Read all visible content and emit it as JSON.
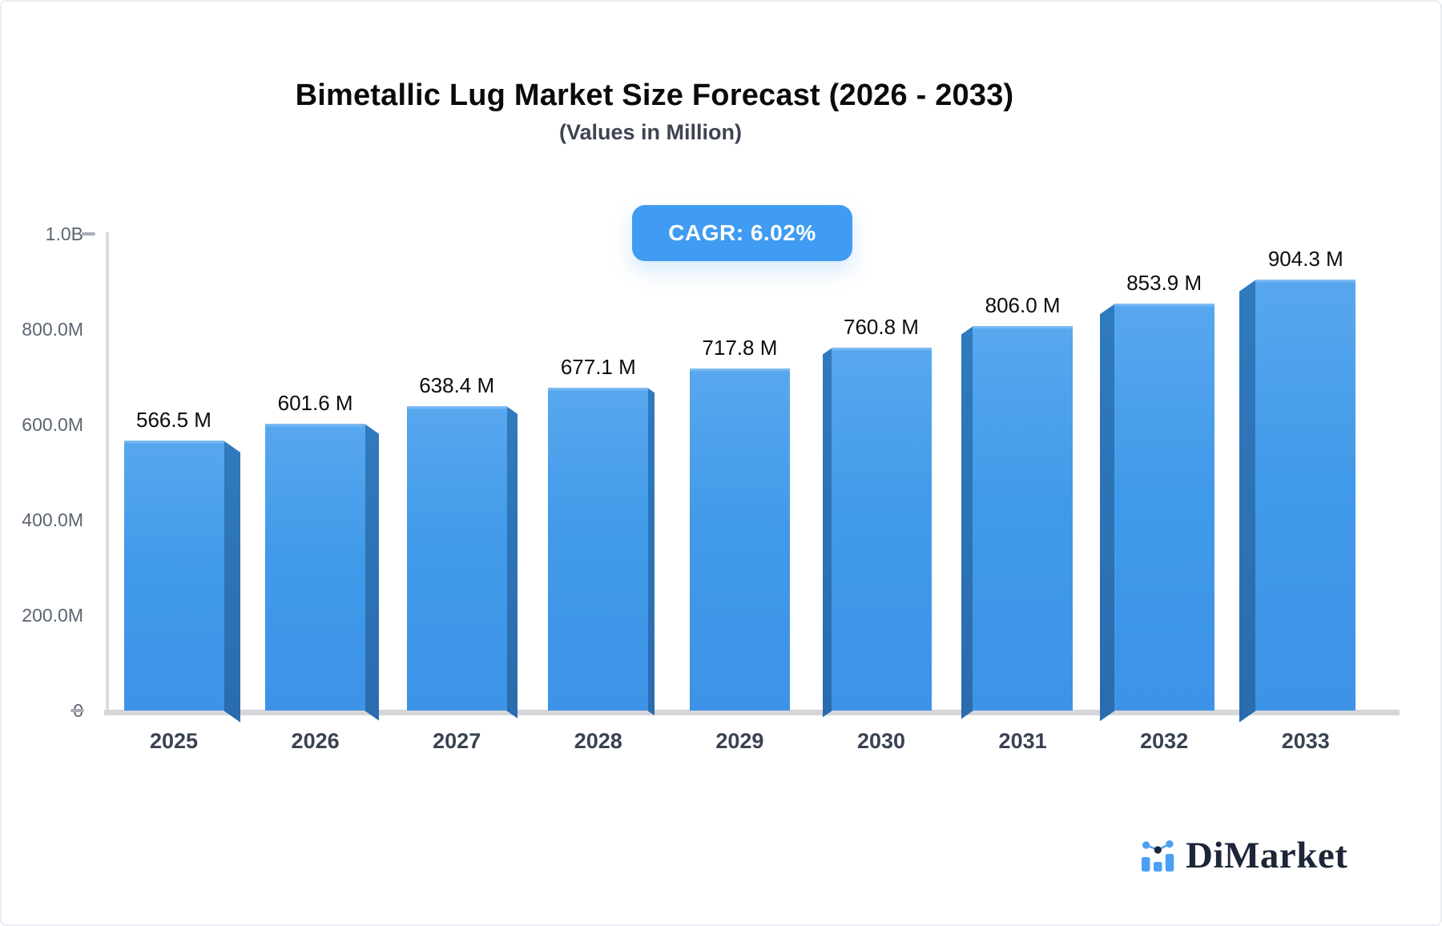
{
  "title": "Bimetallic Lug Market Size Forecast (2026 - 2033)",
  "subtitle": "(Values in Million)",
  "cagr_badge_label": "CAGR: 6.02%",
  "logo": {
    "text": "DiMarket",
    "icon": "mini-bar-chart-icon"
  },
  "colors": {
    "bar_face": "#419ae9",
    "bar_face_highlight": "#57a7ee",
    "bar_side": "#2b72b5",
    "badge_bg": "#3f9cf2",
    "axis_line": "#d4d6da",
    "tick_text": "#5b6472",
    "year_text": "#3a4252",
    "logo_blue": "#4aa0f5",
    "logo_navy": "#1c2638"
  },
  "chart_data": {
    "type": "bar",
    "title": "Bimetallic Lug Market Size Forecast (2026 - 2033)",
    "subtitle": "(Values in Million)",
    "cagr": "6.02%",
    "categories": [
      "2025",
      "2026",
      "2027",
      "2028",
      "2029",
      "2030",
      "2031",
      "2032",
      "2033"
    ],
    "values": [
      566.5,
      601.6,
      638.4,
      677.1,
      717.8,
      760.8,
      806.0,
      853.9,
      904.3
    ],
    "bar_labels": [
      "566.5 M",
      "601.6 M",
      "638.4 M",
      "677.1 M",
      "717.8 M",
      "760.8 M",
      "806.0 M",
      "853.9 M",
      "904.3 M"
    ],
    "values_unit": "M",
    "ylim": [
      0,
      1000
    ],
    "y_ticks": [
      {
        "label": "1.0B",
        "value": 1000,
        "dash": true
      },
      {
        "label": "800.0M",
        "value": 800,
        "dash": false
      },
      {
        "label": "600.0M",
        "value": 600,
        "dash": false
      },
      {
        "label": "400.0M",
        "value": 400,
        "dash": false
      },
      {
        "label": "200.0M",
        "value": 200,
        "dash": false
      },
      {
        "label": "0",
        "value": 0,
        "dash": true
      }
    ],
    "legend": null,
    "grid": false,
    "style": "pseudo-3d bars, perspective vanishing toward center"
  }
}
